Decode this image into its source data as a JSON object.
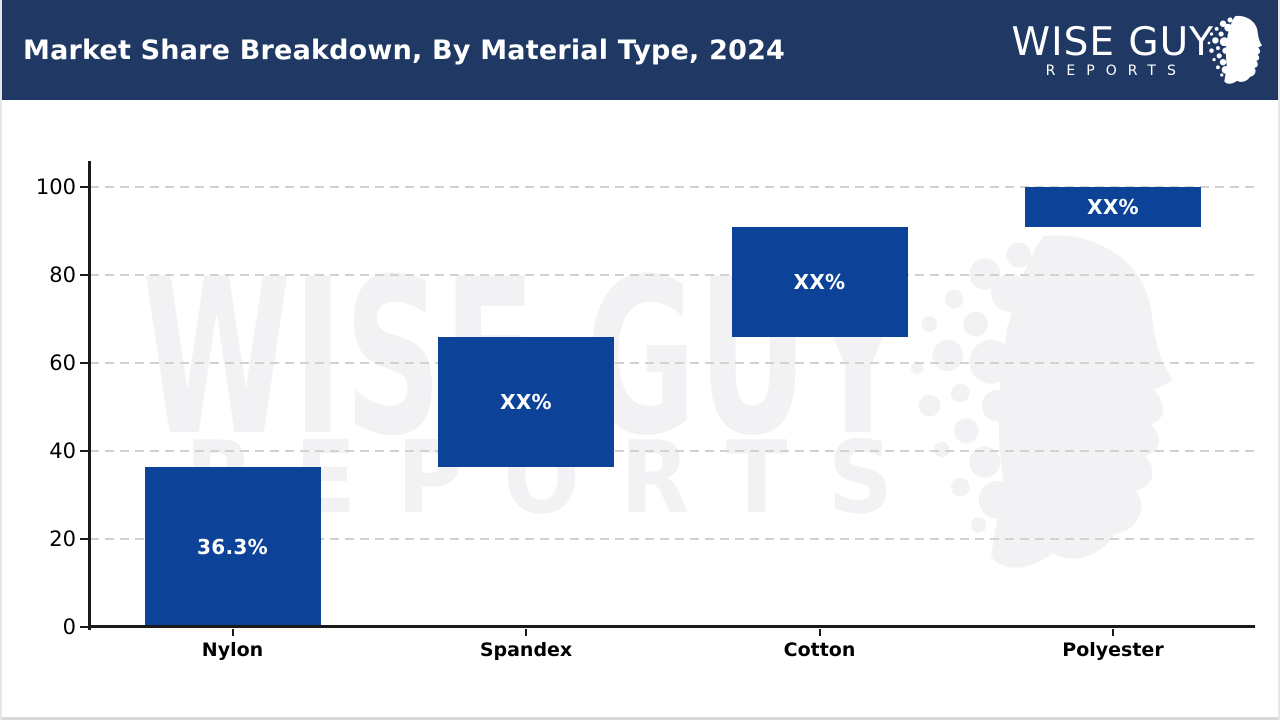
{
  "header": {
    "title": "Market Share Breakdown, By Material Type, 2024",
    "logo": {
      "line1": "WISE GUY",
      "line2": "REPORTS"
    }
  },
  "watermark": {
    "line1": "WISE GUY",
    "line2": "REPORTS"
  },
  "chart_data": {
    "type": "bar",
    "subtype": "waterfall",
    "title": "Market Share Breakdown, By Material Type, 2024",
    "categories": [
      "Nylon",
      "Spandex",
      "Cotton",
      "Polyester"
    ],
    "segments": [
      {
        "category": "Nylon",
        "start": 0,
        "end": 36.3,
        "label": "36.3%"
      },
      {
        "category": "Spandex",
        "start": 36.3,
        "end": 65.7,
        "label": "XX%"
      },
      {
        "category": "Cotton",
        "start": 65.7,
        "end": 90.7,
        "label": "XX%"
      },
      {
        "category": "Polyester",
        "start": 90.7,
        "end": 100,
        "label": "XX%"
      }
    ],
    "xlabel": "",
    "ylabel": "",
    "ylim": [
      0,
      100
    ],
    "yticks": [
      0,
      20,
      40,
      60,
      80,
      100
    ],
    "grid": "horizontal-dashed",
    "legend": "none"
  },
  "colors": {
    "header_bg": "#1f3864",
    "bar": "#0c4399",
    "bar_label": "#ffffff",
    "grid": "#d2d2d2",
    "axis": "#1a1a1a",
    "watermark": "#f2f2f4",
    "title_text": "#ffffff"
  }
}
